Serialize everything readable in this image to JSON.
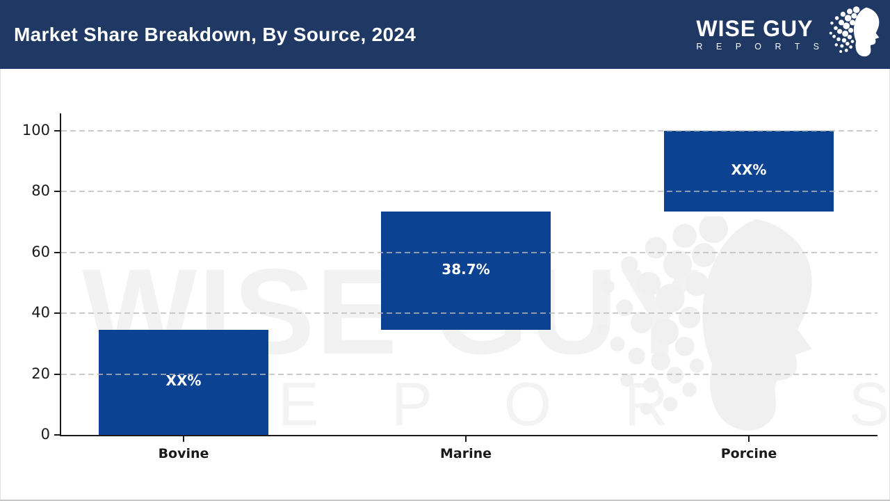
{
  "header": {
    "title": "Market Share Breakdown, By Source, 2024",
    "background_color": "#1f3864"
  },
  "logo": {
    "line1": "WISE GUY",
    "line2": "R E P O R T S"
  },
  "watermark": {
    "line1": "WISE GUY",
    "line2": "R E P O R T S"
  },
  "chart_data": {
    "type": "bar",
    "subtype": "waterfall",
    "title": "Market Share Breakdown, By Source, 2024",
    "categories": [
      "Bovine",
      "Marine",
      "Porcine"
    ],
    "values": [
      34.6,
      38.7,
      26.7
    ],
    "cumulative_start": [
      0,
      34.6,
      73.3
    ],
    "bar_labels": [
      "XX%",
      "38.7%",
      "XX%"
    ],
    "xlabel": "",
    "ylabel": "",
    "ylim": [
      0,
      105.5
    ],
    "yticks": [
      0,
      20,
      40,
      60,
      80,
      100
    ],
    "grid": "horizontal dashed, drawn over bars",
    "legend": "none",
    "bar_color": "#0b4292",
    "bar_label_color": "#ffffff",
    "gridline_color": "#c9c9c9",
    "axis_color": "#1a1a1a"
  }
}
